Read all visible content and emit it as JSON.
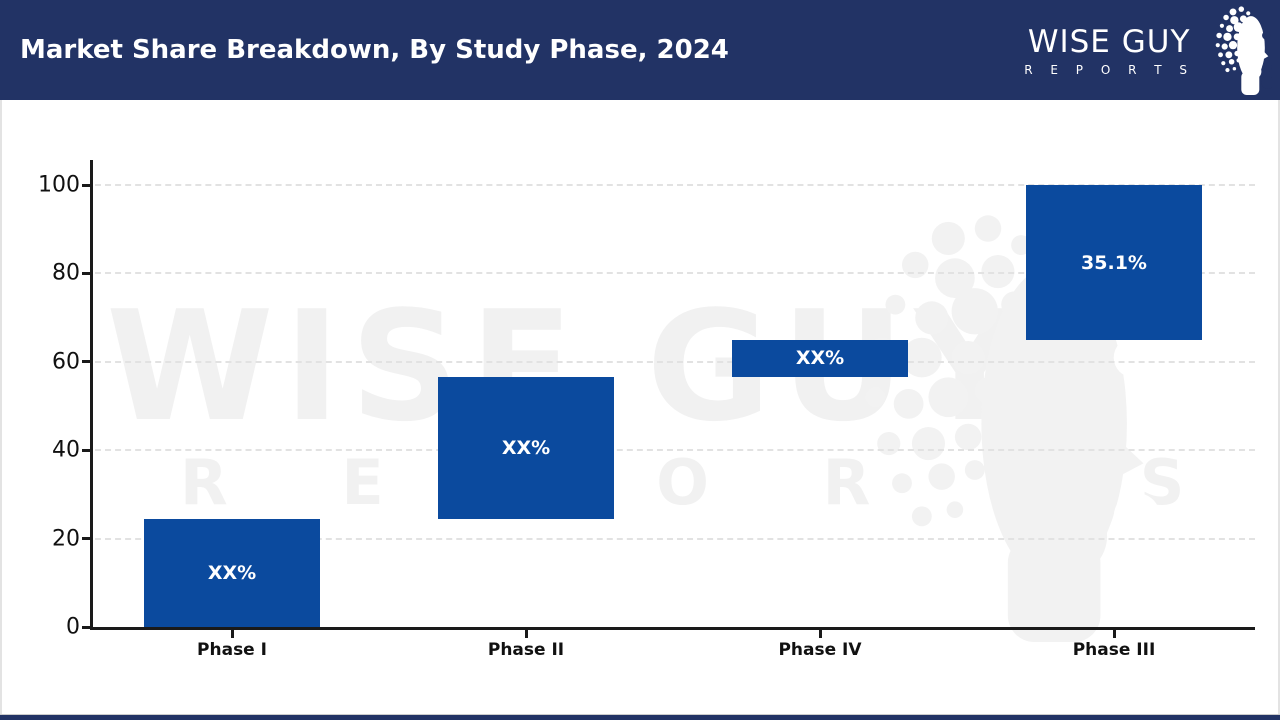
{
  "header": {
    "title": "Market Share Breakdown, By Study Phase, 2024",
    "logo": {
      "wordmark": "WISE GUY",
      "sub": "R E P O R T S"
    }
  },
  "watermark": {
    "line1": "WISE GUY",
    "line2": "R E P O R T S"
  },
  "footer": {},
  "chart_data": {
    "type": "bar",
    "subtype": "floating-waterfall",
    "title": "Market Share Breakdown, By Study Phase, 2024",
    "categories": [
      "Phase I",
      "Phase II",
      "Phase IV",
      "Phase III"
    ],
    "segments": [
      {
        "category": "Phase I",
        "start": 0,
        "end": 24.5,
        "label": "XX%"
      },
      {
        "category": "Phase II",
        "start": 24.5,
        "end": 56.6,
        "label": "XX%"
      },
      {
        "category": "Phase IV",
        "start": 56.6,
        "end": 64.9,
        "label": "XX%"
      },
      {
        "category": "Phase III",
        "start": 64.9,
        "end": 100,
        "label": "35.1%"
      }
    ],
    "xlabel": "",
    "ylabel": "",
    "ylim": [
      0,
      100
    ],
    "yticks": [
      0,
      20,
      40,
      60,
      80,
      100
    ],
    "grid": "horizontal-dashed",
    "legend": "none",
    "colors": {
      "bar": "#0b4a9e",
      "header_band": "#223365",
      "axis": "#1a1a1a",
      "gridline": "#e2e2e2",
      "bar_label_text": "#ffffff",
      "watermark": "#f1f1f1"
    }
  }
}
